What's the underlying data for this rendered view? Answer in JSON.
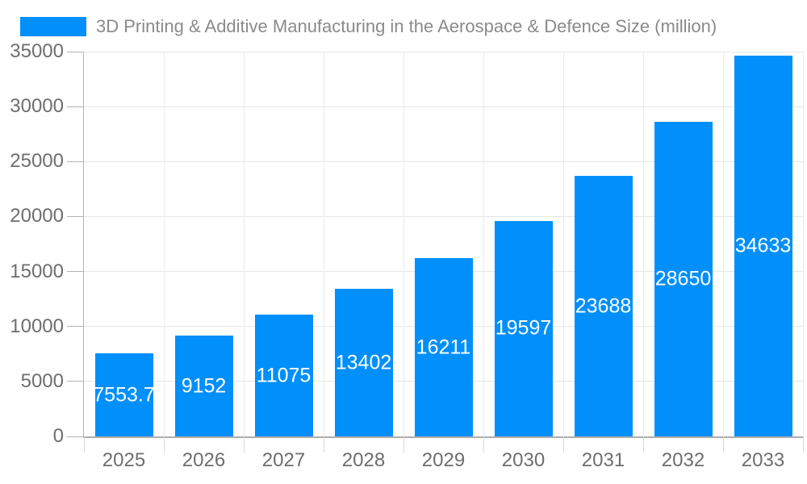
{
  "legend": {
    "label": "3D Printing & Additive Manufacturing in the Aerospace & Defence Size (million)",
    "swatch_color": "#008FFB"
  },
  "colors": {
    "bar": "#008FFB",
    "bar_label_text": "#FFFFFF",
    "axis_line": "#B3B3B3",
    "gridline": "#E6E6E6",
    "axis_label_text": "#6E6E6E",
    "legend_text": "#8A8A8A",
    "background": "#FFFFFF"
  },
  "chart_data": {
    "type": "bar",
    "title": "3D Printing & Additive Manufacturing in the Aerospace & Defence Size (million)",
    "xlabel": "",
    "ylabel": "",
    "categories": [
      "2025",
      "2026",
      "2027",
      "2028",
      "2029",
      "2030",
      "2031",
      "2032",
      "2033"
    ],
    "series": [
      {
        "name": "3D Printing & Additive Manufacturing in the Aerospace & Defence Size (million)",
        "values": [
          7553.7,
          9152,
          11075,
          13402,
          16211,
          19597,
          23688,
          28650,
          34633
        ]
      }
    ],
    "data_labels": [
      "7553.7",
      "9152",
      "11075",
      "13402",
      "16211",
      "19597",
      "23688",
      "28650",
      "34633"
    ],
    "ylim": [
      0,
      35000
    ],
    "yticks": [
      0,
      5000,
      10000,
      15000,
      20000,
      25000,
      30000,
      35000
    ],
    "grid": true,
    "legend_position": "top-left"
  }
}
